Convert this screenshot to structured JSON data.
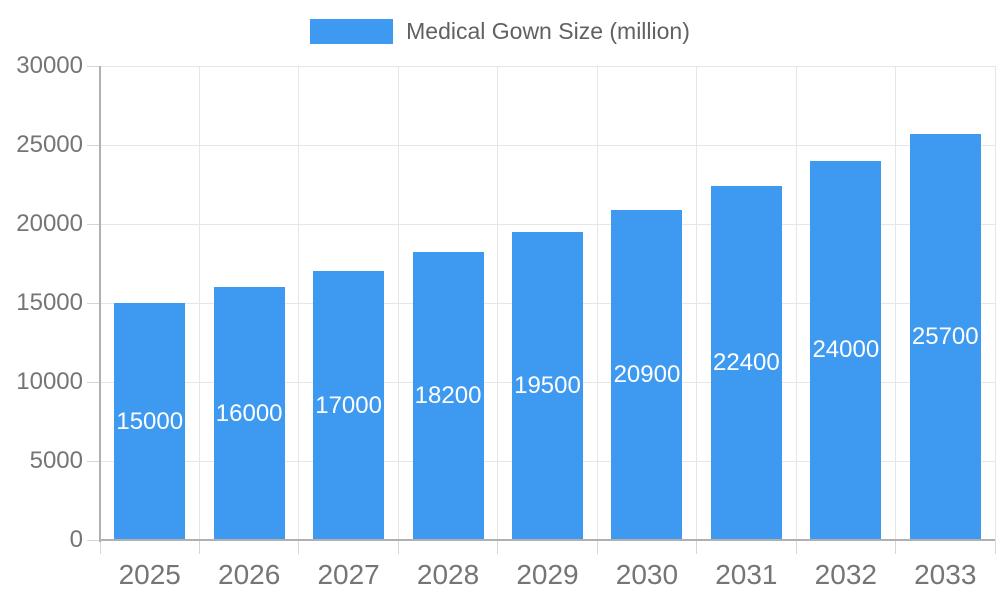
{
  "chart_data": {
    "type": "bar",
    "title": "Medical Gown Size (million)",
    "legend": {
      "label": "Medical Gown Size (million)",
      "position": "top-center"
    },
    "categories": [
      "2025",
      "2026",
      "2027",
      "2028",
      "2029",
      "2030",
      "2031",
      "2032",
      "2033"
    ],
    "values": [
      15000,
      16000,
      17000,
      18200,
      19500,
      20900,
      22400,
      24000,
      25700
    ],
    "bar_value_labels": [
      "15000",
      "16000",
      "17000",
      "18200",
      "19500",
      "20900",
      "22400",
      "24000",
      "25700"
    ],
    "xlabel": "",
    "ylabel": "",
    "ylim": [
      0,
      30000
    ],
    "yticks": [
      0,
      5000,
      10000,
      15000,
      20000,
      25000,
      30000
    ],
    "ytick_labels": [
      "0",
      "5000",
      "10000",
      "15000",
      "20000",
      "25000",
      "30000"
    ],
    "grid": true,
    "grid_vertical": true,
    "colors": {
      "bar": "#3D9AF0",
      "grid": "#e6e6e6",
      "axis_line": "#b0b0b0",
      "tick": "#d6d6d6",
      "axis_label_text": "#757575",
      "title_text": "#616161",
      "value_label_text": "#ffffff",
      "background": "#ffffff"
    }
  }
}
